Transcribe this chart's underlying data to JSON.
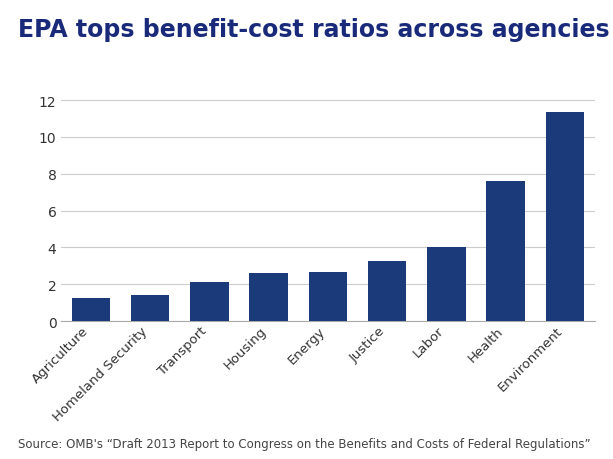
{
  "title": "EPA tops benefit-cost ratios across agencies",
  "categories": [
    "Agriculture",
    "Homeland Security",
    "Transport",
    "Housing",
    "Energy",
    "Justice",
    "Labor",
    "Health",
    "Environment"
  ],
  "values": [
    1.25,
    1.4,
    2.1,
    2.6,
    2.65,
    3.25,
    4.0,
    7.6,
    11.35
  ],
  "bar_color": "#1a3a7a",
  "ylim": [
    0,
    13
  ],
  "yticks": [
    0,
    2,
    4,
    6,
    8,
    10,
    12
  ],
  "title_fontsize": 17,
  "title_color": "#1a2a7a",
  "source_text": "Source: OMB's “Draft 2013 Report to Congress on the Benefits and Costs of Federal Regulations”",
  "source_fontsize": 8.5,
  "background_color": "#ffffff",
  "grid_color": "#cccccc",
  "tick_label_fontsize": 10,
  "xtick_label_fontsize": 9.5
}
